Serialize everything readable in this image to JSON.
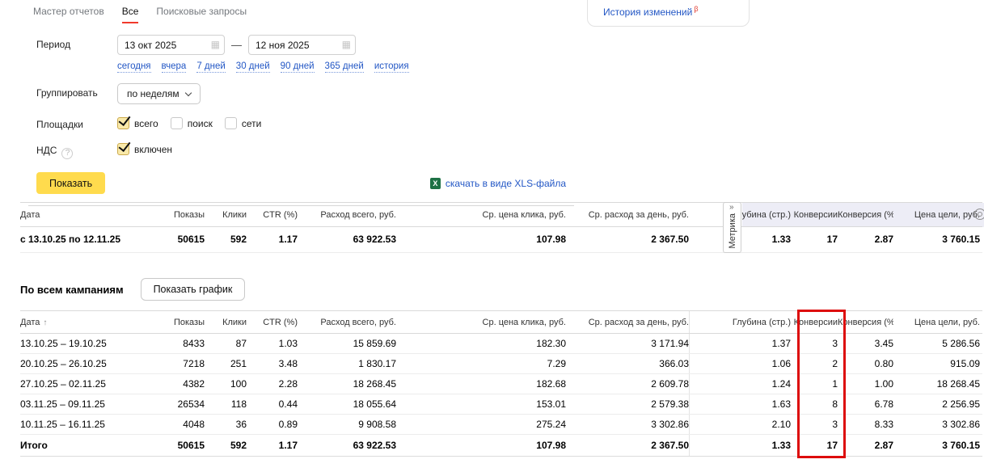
{
  "tabs": {
    "items": [
      {
        "label": "Мастер отчетов",
        "active": false
      },
      {
        "label": "Все",
        "active": true
      },
      {
        "label": "Поисковые запросы",
        "active": false
      }
    ]
  },
  "history": {
    "label": "История изменений",
    "beta_badge": "β"
  },
  "filters": {
    "period_label": "Период",
    "date_from": "13 окт 2025",
    "date_to": "12 ноя 2025",
    "date_separator": "—",
    "quick_ranges": [
      "сегодня",
      "вчера",
      "7 дней",
      "30 дней",
      "90 дней",
      "365 дней",
      "история"
    ],
    "group_label": "Группировать",
    "group_value": "по неделям",
    "platforms_label": "Площадки",
    "platform_options": [
      {
        "label": "всего",
        "checked": true
      },
      {
        "label": "поиск",
        "checked": false
      },
      {
        "label": "сети",
        "checked": false
      }
    ],
    "vat_label": "НДС",
    "vat_option": {
      "label": "включен",
      "checked": true
    },
    "show_button": "Показать",
    "xls_link": "скачать в виде XLS-файла"
  },
  "metrika": {
    "tab_label": "Метрика"
  },
  "table_columns": [
    "Дата",
    "Показы",
    "Клики",
    "CTR (%)",
    "Расход всего, руб.",
    "Ср. цена клика, руб.",
    "Ср. расход за день, руб.",
    "Глубина (стр.)",
    "Конверсии",
    "Конверсия (%)",
    "Цена цели, руб."
  ],
  "summary_table": {
    "row": [
      "с 13.10.25 по 12.11.25",
      "50615",
      "592",
      "1.17",
      "63 922.53",
      "107.98",
      "2 367.50",
      "1.33",
      "17",
      "2.87",
      "3 760.15"
    ]
  },
  "campaigns": {
    "title": "По всем кампаниям",
    "chart_button_label": "Показать график"
  },
  "main_table": {
    "rows": [
      [
        "13.10.25 – 19.10.25",
        "8433",
        "87",
        "1.03",
        "15 859.69",
        "182.30",
        "3 171.94",
        "1.37",
        "3",
        "3.45",
        "5 286.56"
      ],
      [
        "20.10.25 – 26.10.25",
        "7218",
        "251",
        "3.48",
        "1 830.17",
        "7.29",
        "366.03",
        "1.06",
        "2",
        "0.80",
        "915.09"
      ],
      [
        "27.10.25 – 02.11.25",
        "4382",
        "100",
        "2.28",
        "18 268.45",
        "182.68",
        "2 609.78",
        "1.24",
        "1",
        "1.00",
        "18 268.45"
      ],
      [
        "03.11.25 – 09.11.25",
        "26534",
        "118",
        "0.44",
        "18 055.64",
        "153.01",
        "2 579.38",
        "1.63",
        "8",
        "6.78",
        "2 256.95"
      ],
      [
        "10.11.25 – 16.11.25",
        "4048",
        "36",
        "0.89",
        "9 908.58",
        "275.24",
        "3 302.86",
        "2.10",
        "3",
        "8.33",
        "3 302.86"
      ],
      [
        "Итого",
        "50615",
        "592",
        "1.17",
        "63 922.53",
        "107.98",
        "2 367.50",
        "1.33",
        "17",
        "2.87",
        "3 760.15"
      ]
    ]
  },
  "colors": {
    "accent_yellow": "#ffdb4d",
    "link_blue": "#2357c5",
    "highlight_red": "#dd0c0c",
    "tab_underline_red": "#f0392b",
    "metrika_header_bg": "#ededf6",
    "checkbox_yellow": "#f9e9a9"
  }
}
